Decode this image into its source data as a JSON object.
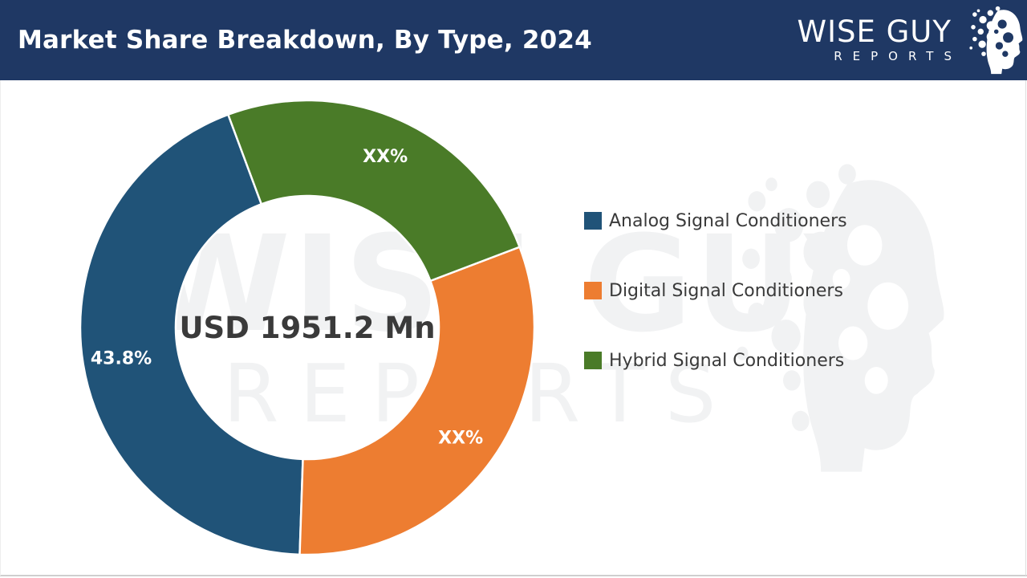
{
  "header": {
    "title": "Market Share Breakdown, By Type, 2024",
    "logo": {
      "name": "WISE GUY",
      "tagline": "REPORTS"
    }
  },
  "chart_data": {
    "type": "pie",
    "subtype": "donut",
    "title": "Market Share Breakdown, By Type, 2024",
    "center_label": "USD 1951.2 Mn",
    "start_angle_deg": 110.4,
    "direction": "counterclockwise",
    "inner_radius_ratio": 0.58,
    "legend_position": "right",
    "categories": [
      "Analog Signal Conditioners",
      "Digital Signal Conditioners",
      "Hybrid Signal Conditioners"
    ],
    "segments": [
      {
        "name": "Analog Signal Conditioners",
        "label": "43.8%",
        "value": 43.8,
        "color": "#205378"
      },
      {
        "name": "Digital Signal Conditioners",
        "label": "XX%",
        "value": 31.3,
        "color": "#ED7D31"
      },
      {
        "name": "Hybrid Signal Conditioners",
        "label": "XX%",
        "value": 24.9,
        "color": "#4A7B28"
      }
    ]
  },
  "legend": {
    "items": [
      {
        "label": "Analog Signal Conditioners",
        "color": "#205378"
      },
      {
        "label": "Digital Signal Conditioners",
        "color": "#ED7D31"
      },
      {
        "label": "Hybrid Signal Conditioners",
        "color": "#4A7B28"
      }
    ]
  },
  "watermark": {
    "line1": "WISE GUY",
    "line2": "REPORTS"
  },
  "colors": {
    "header_bg": "#1F3864",
    "text_dark": "#3A3A3A",
    "watermark": "#F1F2F3",
    "page_bg": "#FFFFFF",
    "divider_line": "#CFCFCF"
  }
}
